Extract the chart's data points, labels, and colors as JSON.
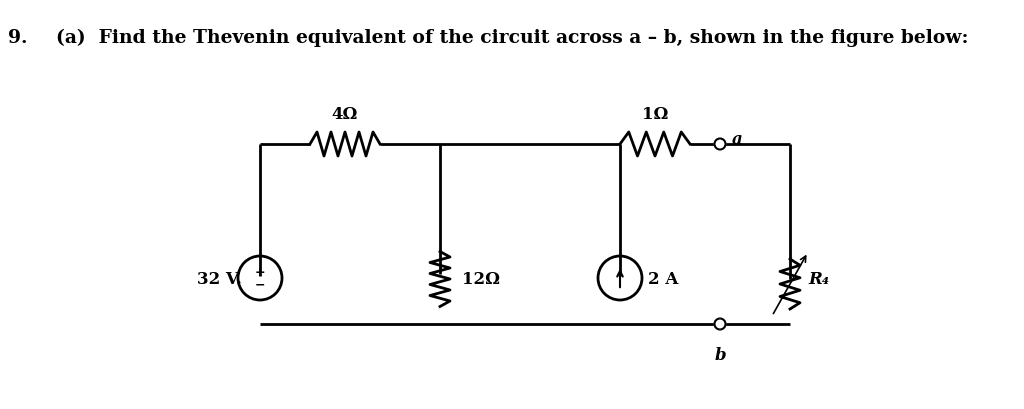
{
  "title_number": "9.",
  "title_text": "(a)  Find the Thevenin equivalent of the circuit across a – b, shown in the figure below:",
  "title_fontsize": 13.5,
  "title_font": "serif",
  "bg_color": "#ffffff",
  "text_color": "#000000",
  "label_4ohm": "4Ω",
  "label_1ohm": "1Ω",
  "label_12ohm": "12Ω",
  "label_2A": "2 A",
  "label_32V": "32 V.",
  "label_RL": "R₄",
  "label_a": "a",
  "label_b": "b",
  "circuit_color": "#000000",
  "lw": 2.0
}
